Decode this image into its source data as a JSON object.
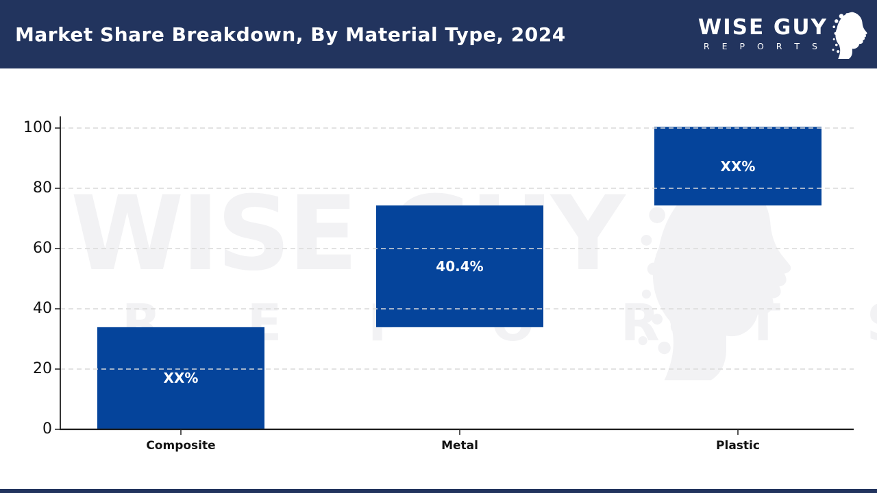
{
  "header": {
    "title": "Market Share Breakdown, By Material Type, 2024",
    "background": "#22345e",
    "logo": {
      "line1": "WISE GUY",
      "line2": "R E P O R T S"
    }
  },
  "watermark": {
    "line1": "WISE GUY",
    "line2": "R E P O R T S",
    "color": "#f2f2f4"
  },
  "footer": {
    "background": "#22345e"
  },
  "chart_data": {
    "type": "bar",
    "subtype": "waterfall",
    "title": "Market Share Breakdown, By Material Type, 2024",
    "categories": [
      "Composite",
      "Metal",
      "Plastic"
    ],
    "series": [
      {
        "name": "Market Share",
        "segments": [
          {
            "category": "Composite",
            "start": 0,
            "end": 33.9,
            "value": 33.9,
            "label": "XX%"
          },
          {
            "category": "Metal",
            "start": 33.9,
            "end": 74.3,
            "value": 40.4,
            "label": "40.4%"
          },
          {
            "category": "Plastic",
            "start": 74.3,
            "end": 100.4,
            "value": 26.1,
            "label": "XX%"
          }
        ]
      }
    ],
    "xlabel": "",
    "ylabel": "",
    "ylim": [
      0,
      100
    ],
    "yticks": [
      0,
      20,
      40,
      60,
      80,
      100
    ],
    "grid": "horizontal-dashed",
    "legend": "none",
    "bar_color": "#05449b",
    "value_label_color": "#ffffff",
    "gridline_color": "#d9d9d9",
    "axis_color": "#1c1c1c"
  }
}
